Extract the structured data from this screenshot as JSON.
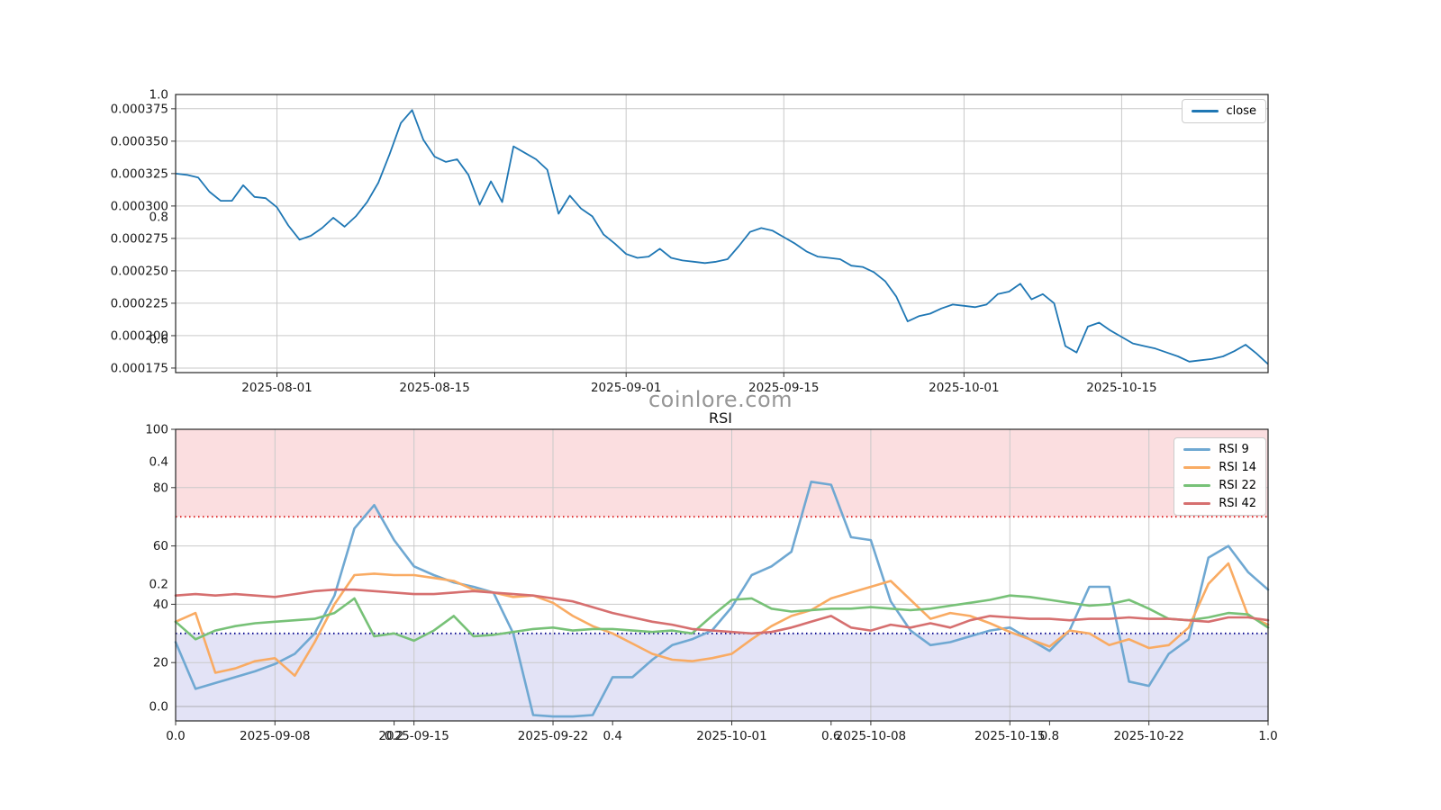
{
  "watermark": "coinlore.com",
  "rsi_title": "RSI",
  "colors": {
    "close": "#1f77b4",
    "rsi9": "#6fa8d2",
    "rsi14": "#f9ab63",
    "rsi22": "#77c177",
    "rsi42": "#d66f6f",
    "overbought_band": "#fbdee0",
    "oversold_band": "#e3e3f6",
    "overbought_line": "#dc1f1f",
    "oversold_line": "#00008b",
    "grid": "#c9c9c9",
    "spine": "#262626",
    "watermark_color": "#969696"
  },
  "price_chart": {
    "y_ticks": [
      {
        "v": 0.000375,
        "label": "0.000375"
      },
      {
        "v": 0.00035,
        "label": "0.000350"
      },
      {
        "v": 0.000325,
        "label": "0.000325"
      },
      {
        "v": 0.0003,
        "label": "0.000300"
      },
      {
        "v": 0.000275,
        "label": "0.000275"
      },
      {
        "v": 0.00025,
        "label": "0.000250"
      },
      {
        "v": 0.000225,
        "label": "0.000225"
      },
      {
        "v": 0.0002,
        "label": "0.000200"
      },
      {
        "v": 0.000175,
        "label": "0.000175"
      }
    ],
    "x_tick_labels": [
      "2025-08-01",
      "2025-08-15",
      "2025-09-01",
      "2025-09-15",
      "2025-10-01",
      "2025-10-15"
    ],
    "legend": [
      "close"
    ]
  },
  "rsi_chart": {
    "y_ticks": [
      {
        "v": 100,
        "label": "100"
      },
      {
        "v": 80,
        "label": "80"
      },
      {
        "v": 60,
        "label": "60"
      },
      {
        "v": 40,
        "label": "40"
      },
      {
        "v": 20,
        "label": "20"
      }
    ],
    "x_tick_labels": [
      "2025-09-08",
      "2025-09-15",
      "2025-09-22",
      "2025-10-01",
      "2025-10-08",
      "2025-10-15",
      "2025-10-22"
    ],
    "legend": [
      "RSI 9",
      "RSI 14",
      "RSI 22",
      "RSI 42"
    ],
    "overbought_level": 70,
    "oversold_level": 30
  },
  "overlay_axis": {
    "y_labels": [
      "1.0",
      "0.8",
      "0.6",
      "0.4",
      "0.2",
      "0.0"
    ],
    "y_values": [
      1.0,
      0.8,
      0.6,
      0.4,
      0.2,
      0.0
    ],
    "x_labels": [
      "0.0",
      "0.2",
      "0.4",
      "0.6",
      "0.8",
      "1.0"
    ],
    "x_values": [
      0.0,
      0.2,
      0.4,
      0.6,
      0.8,
      1.0
    ]
  },
  "chart_data": [
    {
      "type": "line",
      "title": "",
      "xlabel": "",
      "ylabel": "",
      "ylim": [
        0.0001715,
        0.000386
      ],
      "grid": true,
      "legend_position": "upper right",
      "x": [
        "2025-07-23",
        "2025-07-24",
        "2025-07-25",
        "2025-07-26",
        "2025-07-27",
        "2025-07-28",
        "2025-07-29",
        "2025-07-30",
        "2025-07-31",
        "2025-08-01",
        "2025-08-02",
        "2025-08-03",
        "2025-08-04",
        "2025-08-05",
        "2025-08-06",
        "2025-08-07",
        "2025-08-08",
        "2025-08-09",
        "2025-08-10",
        "2025-08-11",
        "2025-08-12",
        "2025-08-13",
        "2025-08-14",
        "2025-08-15",
        "2025-08-16",
        "2025-08-17",
        "2025-08-18",
        "2025-08-19",
        "2025-08-20",
        "2025-08-21",
        "2025-08-22",
        "2025-08-23",
        "2025-08-24",
        "2025-08-25",
        "2025-08-26",
        "2025-08-27",
        "2025-08-28",
        "2025-08-29",
        "2025-08-30",
        "2025-08-31",
        "2025-09-01",
        "2025-09-02",
        "2025-09-03",
        "2025-09-04",
        "2025-09-05",
        "2025-09-06",
        "2025-09-07",
        "2025-09-08",
        "2025-09-09",
        "2025-09-10",
        "2025-09-11",
        "2025-09-12",
        "2025-09-13",
        "2025-09-14",
        "2025-09-15",
        "2025-09-16",
        "2025-09-17",
        "2025-09-18",
        "2025-09-19",
        "2025-09-20",
        "2025-09-21",
        "2025-09-22",
        "2025-09-23",
        "2025-09-24",
        "2025-09-25",
        "2025-09-26",
        "2025-09-27",
        "2025-09-28",
        "2025-09-29",
        "2025-09-30",
        "2025-10-01",
        "2025-10-02",
        "2025-10-03",
        "2025-10-04",
        "2025-10-05",
        "2025-10-06",
        "2025-10-07",
        "2025-10-08",
        "2025-10-09",
        "2025-10-10",
        "2025-10-11",
        "2025-10-12",
        "2025-10-13",
        "2025-10-14",
        "2025-10-15",
        "2025-10-16",
        "2025-10-17",
        "2025-10-18",
        "2025-10-19",
        "2025-10-20",
        "2025-10-21",
        "2025-10-22",
        "2025-10-23",
        "2025-10-24",
        "2025-10-25",
        "2025-10-26",
        "2025-10-27",
        "2025-10-28"
      ],
      "series": [
        {
          "name": "close",
          "color": "#1f77b4",
          "values": [
            0.000325,
            0.000324,
            0.000322,
            0.000311,
            0.000304,
            0.000304,
            0.000316,
            0.000307,
            0.000306,
            0.000299,
            0.000285,
            0.000274,
            0.000277,
            0.000283,
            0.000291,
            0.000284,
            0.000292,
            0.000303,
            0.000318,
            0.00034,
            0.000364,
            0.000374,
            0.000351,
            0.000338,
            0.000334,
            0.000336,
            0.000324,
            0.000301,
            0.000319,
            0.000303,
            0.000346,
            0.000341,
            0.000336,
            0.000328,
            0.000294,
            0.000308,
            0.000298,
            0.000292,
            0.000278,
            0.000271,
            0.000263,
            0.00026,
            0.000261,
            0.000267,
            0.00026,
            0.000258,
            0.000257,
            0.000256,
            0.000257,
            0.000259,
            0.000269,
            0.00028,
            0.000283,
            0.000281,
            0.000276,
            0.000271,
            0.000265,
            0.000261,
            0.00026,
            0.000259,
            0.000254,
            0.000253,
            0.000249,
            0.000242,
            0.00023,
            0.000211,
            0.000215,
            0.000217,
            0.000221,
            0.000224,
            0.000223,
            0.000222,
            0.000224,
            0.000232,
            0.000234,
            0.00024,
            0.000228,
            0.000232,
            0.000225,
            0.000192,
            0.000187,
            0.000207,
            0.00021,
            0.000204,
            0.000199,
            0.000194,
            0.000192,
            0.00019,
            0.000187,
            0.000184,
            0.00018,
            0.000181,
            0.000182,
            0.000184,
            0.000188,
            0.000193,
            0.000186,
            0.000178
          ]
        }
      ]
    },
    {
      "type": "line",
      "title": "RSI",
      "xlabel": "",
      "ylabel": "",
      "ylim": [
        0,
        100
      ],
      "grid": true,
      "legend_position": "upper right",
      "bands": [
        {
          "from": 70,
          "to": 100,
          "color": "#fbdee0"
        },
        {
          "from": 0,
          "to": 30,
          "color": "#e3e3f6"
        }
      ],
      "hlines": [
        {
          "y": 70,
          "color": "#dc1f1f",
          "style": "dotted"
        },
        {
          "y": 30,
          "color": "#00008b",
          "style": "dotted"
        }
      ],
      "x": [
        "2025-09-03",
        "2025-09-04",
        "2025-09-05",
        "2025-09-06",
        "2025-09-07",
        "2025-09-08",
        "2025-09-09",
        "2025-09-10",
        "2025-09-11",
        "2025-09-12",
        "2025-09-13",
        "2025-09-14",
        "2025-09-15",
        "2025-09-16",
        "2025-09-17",
        "2025-09-18",
        "2025-09-19",
        "2025-09-20",
        "2025-09-21",
        "2025-09-22",
        "2025-09-23",
        "2025-09-24",
        "2025-09-25",
        "2025-09-26",
        "2025-09-27",
        "2025-09-28",
        "2025-09-29",
        "2025-09-30",
        "2025-10-01",
        "2025-10-02",
        "2025-10-03",
        "2025-10-04",
        "2025-10-05",
        "2025-10-06",
        "2025-10-07",
        "2025-10-08",
        "2025-10-09",
        "2025-10-10",
        "2025-10-11",
        "2025-10-12",
        "2025-10-13",
        "2025-10-14",
        "2025-10-15",
        "2025-10-16",
        "2025-10-17",
        "2025-10-18",
        "2025-10-19",
        "2025-10-20",
        "2025-10-21",
        "2025-10-22",
        "2025-10-23",
        "2025-10-24",
        "2025-10-25",
        "2025-10-26",
        "2025-10-27",
        "2025-10-28"
      ],
      "series": [
        {
          "name": "RSI 9",
          "color": "#6fa8d2",
          "values": [
            27,
            11,
            13,
            15,
            17,
            19.5,
            23,
            30,
            43,
            66,
            74,
            62,
            53,
            50,
            47.5,
            46,
            44,
            30,
            2,
            1.5,
            1.5,
            2,
            15,
            15,
            21,
            26,
            28,
            31,
            39,
            50,
            53,
            58,
            82,
            81,
            63,
            62,
            41,
            31,
            26,
            27,
            29,
            31,
            32,
            28,
            24,
            31,
            46,
            46,
            13.5,
            12,
            23,
            28,
            56,
            60,
            51,
            45
          ]
        },
        {
          "name": "RSI 14",
          "color": "#f9ab63",
          "values": [
            34,
            37,
            16.5,
            18,
            20.5,
            21.5,
            15.5,
            27,
            40,
            50,
            50.5,
            50,
            50,
            49,
            48,
            45,
            44,
            42.5,
            43,
            40.5,
            36,
            32.5,
            30,
            26.5,
            23,
            21,
            20.5,
            21.5,
            23,
            28,
            32.5,
            36,
            38,
            42,
            44,
            46,
            48,
            41.5,
            35,
            37,
            36,
            33.5,
            30.5,
            28,
            25.5,
            31,
            30,
            26,
            28,
            25,
            26,
            32,
            47,
            54,
            36,
            33
          ]
        },
        {
          "name": "RSI 22",
          "color": "#77c177",
          "values": [
            34,
            28,
            31,
            32.5,
            33.5,
            34,
            34.5,
            35,
            37,
            42,
            29,
            30,
            27.5,
            31,
            36,
            29,
            29.5,
            30.5,
            31.5,
            32,
            31,
            31.5,
            31.5,
            31,
            30.5,
            31,
            30,
            36,
            41.5,
            42,
            38.5,
            37.5,
            38,
            38.5,
            38.5,
            39,
            38.5,
            38,
            38.5,
            39.5,
            40.5,
            41.5,
            43,
            42.5,
            41.5,
            40.5,
            39.5,
            40,
            41.5,
            38.5,
            35,
            34.5,
            35.5,
            37,
            36.5,
            32
          ]
        },
        {
          "name": "RSI 42",
          "color": "#d66f6f",
          "values": [
            43,
            43.5,
            43,
            43.5,
            43,
            42.5,
            43.5,
            44.5,
            45,
            45,
            44.5,
            44,
            43.5,
            43.5,
            44,
            44.5,
            44,
            43.5,
            43,
            42,
            41,
            39,
            37,
            35.5,
            34,
            33,
            31.5,
            31,
            30.5,
            30,
            30.5,
            32,
            34,
            36,
            32,
            31,
            33,
            32,
            33.5,
            32,
            34.5,
            36,
            35.5,
            35,
            35,
            34.5,
            35,
            35,
            35.5,
            35,
            35,
            34.5,
            34,
            35.5,
            35.5,
            34.5
          ]
        }
      ]
    }
  ]
}
